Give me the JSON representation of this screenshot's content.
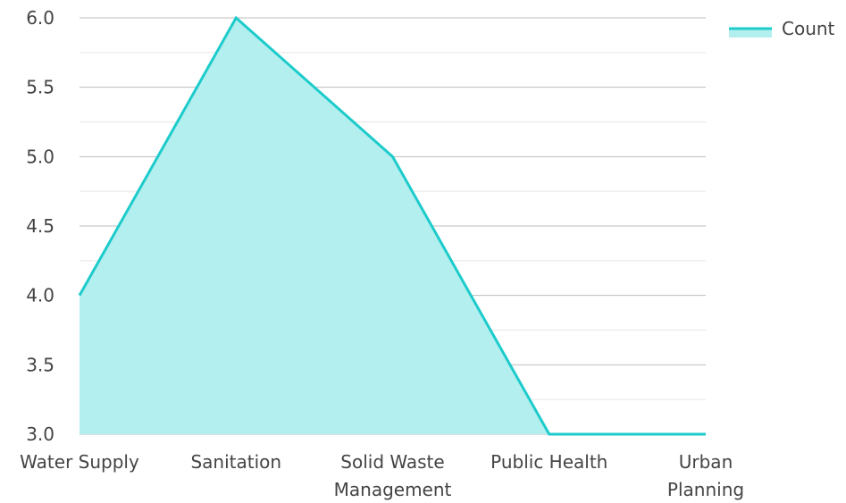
{
  "chart_data": {
    "type": "area",
    "categories": [
      "Water Supply",
      "Sanitation",
      "Solid Waste Management",
      "Public Health",
      "Urban Planning"
    ],
    "category_lines": [
      [
        "Water Supply"
      ],
      [
        "Sanitation"
      ],
      [
        "Solid Waste",
        "Management"
      ],
      [
        "Public Health"
      ],
      [
        "Urban",
        "Planning"
      ]
    ],
    "series": [
      {
        "name": "Count",
        "values": [
          4,
          6,
          5,
          3,
          3
        ]
      }
    ],
    "ylim": [
      3,
      6
    ],
    "yticks": [
      "3.0",
      "3.5",
      "4.0",
      "4.5",
      "5.0",
      "5.5",
      "6.0"
    ],
    "grid": true,
    "legend_position": "top-right",
    "colors": {
      "line": "#1ECBCB",
      "fill": "#B3EFEF",
      "grid_major": "#BDBDBD",
      "grid_minor": "#E6E6E6",
      "text": "#444444"
    }
  }
}
